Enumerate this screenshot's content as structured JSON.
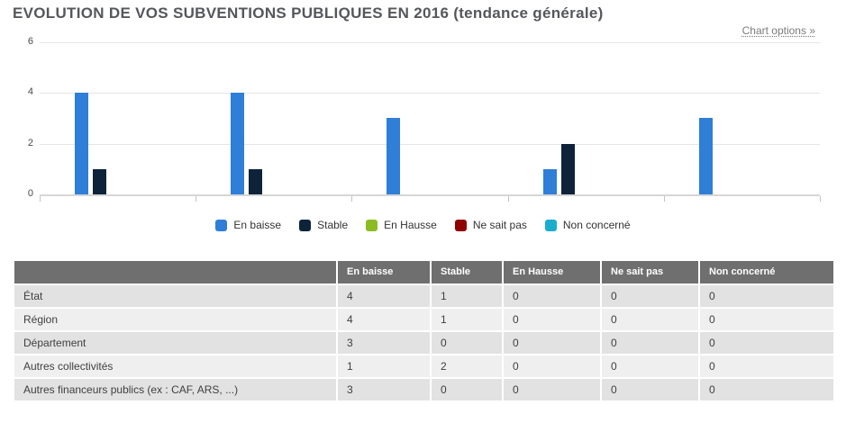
{
  "title": "EVOLUTION DE VOS SUBVENTIONS PUBLIQUES EN 2016 (tendance générale)",
  "chart_options_label": "Chart options »",
  "chart_data": {
    "type": "bar",
    "title": "EVOLUTION DE VOS SUBVENTIONS PUBLIQUES EN 2016 (tendance générale)",
    "categories": [
      "État",
      "Région",
      "Département",
      "Autres collectivités",
      "Autres financeurs publics (ex : CAF, ARS, ...)"
    ],
    "series": [
      {
        "name": "En baisse",
        "color": "#2f7ed8",
        "values": [
          4,
          4,
          3,
          1,
          3
        ]
      },
      {
        "name": "Stable",
        "color": "#0d233a",
        "values": [
          1,
          1,
          0,
          2,
          0
        ]
      },
      {
        "name": "En Hausse",
        "color": "#8bbc21",
        "values": [
          0,
          0,
          0,
          0,
          0
        ]
      },
      {
        "name": "Ne sait pas",
        "color": "#910000",
        "values": [
          0,
          0,
          0,
          0,
          0
        ]
      },
      {
        "name": "Non concerné",
        "color": "#1aadce",
        "values": [
          0,
          0,
          0,
          0,
          0
        ]
      }
    ],
    "xlabel": "",
    "ylabel": "",
    "ylim": [
      0,
      6
    ],
    "yticks": [
      0,
      2,
      4,
      6
    ],
    "grid": true,
    "x_axis_category_labels_visible": false,
    "legend_position": "bottom"
  },
  "table": {
    "headers": [
      "",
      "En baisse",
      "Stable",
      "En Hausse",
      "Ne sait pas",
      "Non concerné"
    ],
    "rows": [
      {
        "label": "État",
        "values": [
          "4",
          "1",
          "0",
          "0",
          "0"
        ]
      },
      {
        "label": "Région",
        "values": [
          "4",
          "1",
          "0",
          "0",
          "0"
        ]
      },
      {
        "label": "Département",
        "values": [
          "3",
          "0",
          "0",
          "0",
          "0"
        ]
      },
      {
        "label": "Autres collectivités",
        "values": [
          "1",
          "2",
          "0",
          "0",
          "0"
        ]
      },
      {
        "label": "Autres financeurs publics (ex : CAF, ARS, ...)",
        "values": [
          "3",
          "0",
          "0",
          "0",
          "0"
        ]
      }
    ]
  }
}
